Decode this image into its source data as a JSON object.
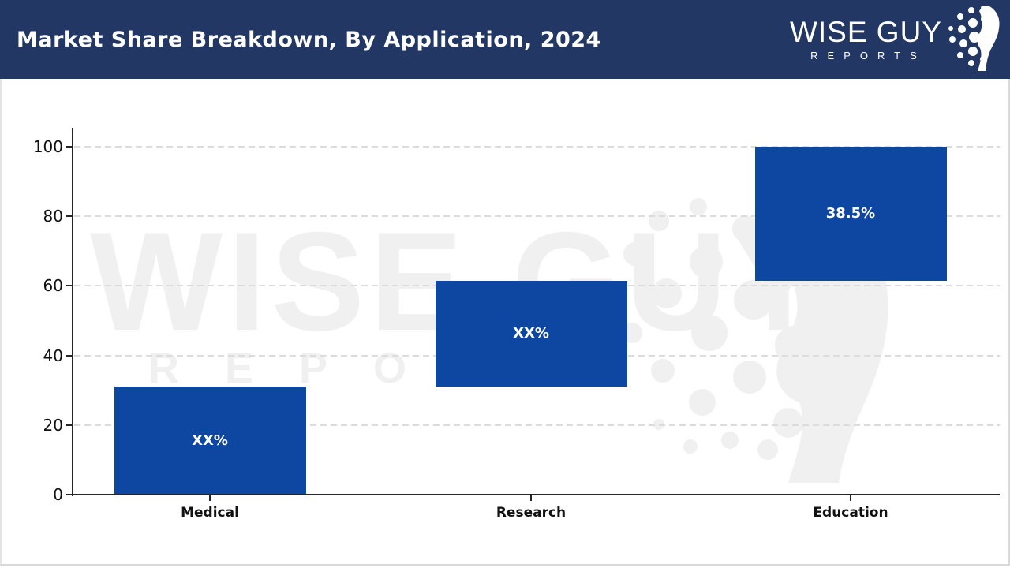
{
  "header": {
    "title": "Market Share Breakdown, By Application, 2024",
    "logo": {
      "line1": "WISE GUY",
      "line2": "REPORTS"
    }
  },
  "watermark": {
    "line1": "WISE GUY",
    "line2": "REPORTS"
  },
  "chart_data": {
    "type": "bar",
    "subtype": "floating-stacked-percentage-waterfall",
    "title": "Market Share Breakdown, By Application, 2024",
    "categories": [
      "Medical",
      "Research",
      "Education"
    ],
    "segments": [
      {
        "category": "Medical",
        "from": 0,
        "to": 31,
        "label": "XX%"
      },
      {
        "category": "Research",
        "from": 31,
        "to": 61.5,
        "label": "XX%"
      },
      {
        "category": "Education",
        "from": 61.5,
        "to": 100,
        "label": "38.5%"
      }
    ],
    "ylim": [
      0,
      100
    ],
    "yticks": [
      0,
      20,
      40,
      60,
      80,
      100
    ],
    "xlabel": "",
    "ylabel": "",
    "grid": "horizontal-dashed",
    "legend": "none",
    "bar_color": "#0d47a1",
    "bar_label_color": "#ffffff"
  },
  "colors": {
    "header_bg": "#223764",
    "axis": "#262626",
    "gridline": "#dcdcdc",
    "watermark": "#f0f0f0",
    "frame_border": "#d9d9d9"
  }
}
